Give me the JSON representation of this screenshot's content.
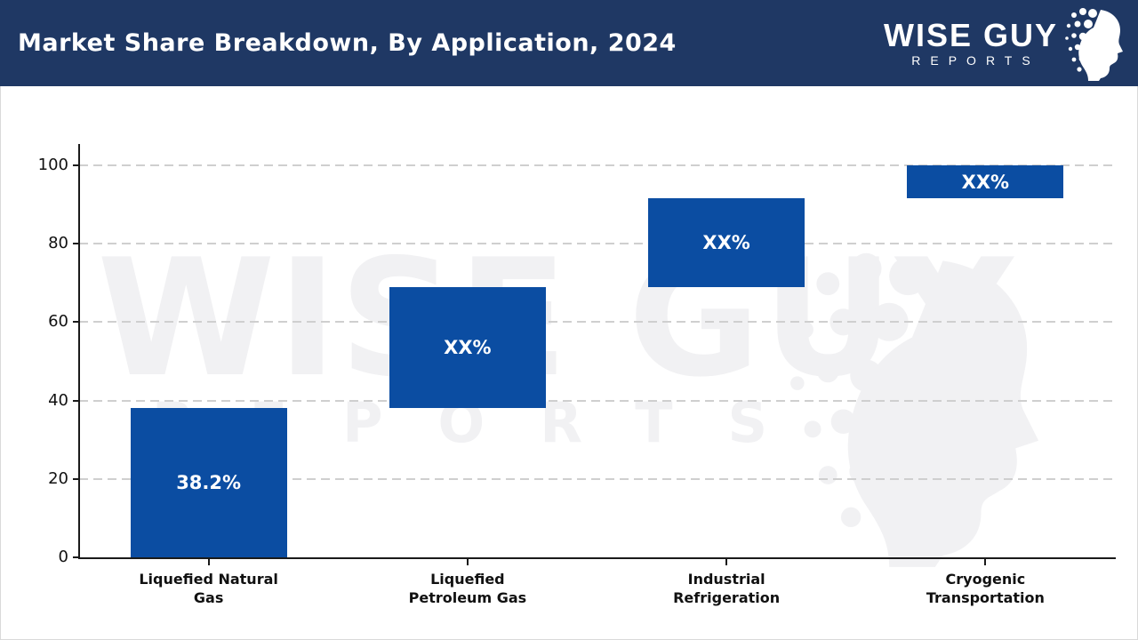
{
  "header": {
    "title": "Market Share Breakdown, By Application, 2024",
    "background_color": "#1f3864",
    "logo": {
      "line1": "WISE GUY",
      "line2": "REPORTS",
      "icon": "dotted-face-profile-icon"
    }
  },
  "watermark": {
    "line1": "WISE GUY",
    "line2": "REPORTS",
    "icon": "dotted-face-profile-icon"
  },
  "chart_data": {
    "type": "bar",
    "subtype": "waterfall-stacked-breakdown",
    "title": "Market Share Breakdown, By Application, 2024",
    "categories": [
      "Liquefied Natural\nGas",
      "Liquefied\nPetroleum Gas",
      "Industrial\nRefrigeration",
      "Cryogenic\nTransportation"
    ],
    "segments": [
      {
        "category": "Liquefied Natural Gas",
        "start": 0,
        "end": 38.2,
        "label": "38.2%"
      },
      {
        "category": "Liquefied Petroleum Gas",
        "start": 38.2,
        "end": 69,
        "label": "XX%"
      },
      {
        "category": "Industrial Refrigeration",
        "start": 69,
        "end": 91.5,
        "label": "XX%"
      },
      {
        "category": "Cryogenic Transportation",
        "start": 91.5,
        "end": 100,
        "label": "XX%"
      }
    ],
    "yticks": [
      0,
      20,
      40,
      60,
      80,
      100
    ],
    "ylim": [
      0,
      105
    ],
    "xlabel": "",
    "ylabel": "",
    "grid": "horizontal-dashed",
    "legend": "none",
    "bar_color": "#0b4da2",
    "value_label_color": "#ffffff"
  }
}
